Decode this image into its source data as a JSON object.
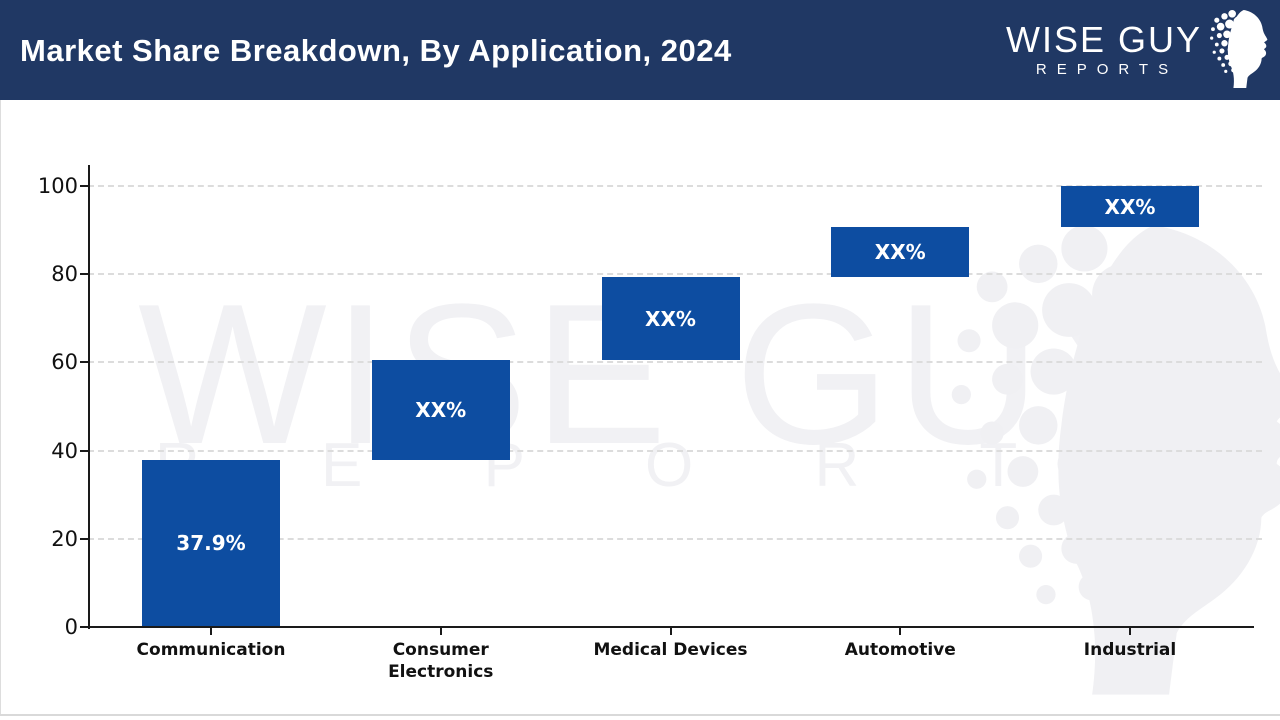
{
  "header": {
    "title": "Market Share Breakdown, By Application, 2024",
    "logo": {
      "line1": "WISE GUY",
      "line2": "REPORTS"
    }
  },
  "watermark": {
    "line1": "WISE GUY",
    "line2": "REPORTS"
  },
  "colors": {
    "header_bg": "#203864",
    "bar_blue": "#0d4da1",
    "gridline": "#dcdcdc",
    "axis": "#1a1a1a",
    "watermark": "#f1f1f4",
    "bar_label_text": "#ffffff"
  },
  "chart_data": {
    "type": "bar",
    "subtype": "waterfall",
    "title": "Market Share Breakdown, By Application, 2024",
    "categories": [
      "Communication",
      "Consumer Electronics",
      "Medical Devices",
      "Automotive",
      "Industrial"
    ],
    "segments": [
      {
        "category": "Communication",
        "start": 0,
        "end": 37.9,
        "label": "37.9%"
      },
      {
        "category": "Consumer Electronics",
        "start": 37.9,
        "end": 60.6,
        "label": "XX%"
      },
      {
        "category": "Medical Devices",
        "start": 60.6,
        "end": 79.3,
        "label": "XX%"
      },
      {
        "category": "Automotive",
        "start": 79.3,
        "end": 90.6,
        "label": "XX%"
      },
      {
        "category": "Industrial",
        "start": 90.6,
        "end": 100.0,
        "label": "XX%"
      }
    ],
    "yticks": [
      0,
      20,
      40,
      60,
      80,
      100
    ],
    "ylim": [
      0,
      105
    ],
    "xlabel": "",
    "ylabel": "",
    "grid": "dashed-horizontal",
    "legend": "none",
    "bar_color": "#0d4da1"
  }
}
